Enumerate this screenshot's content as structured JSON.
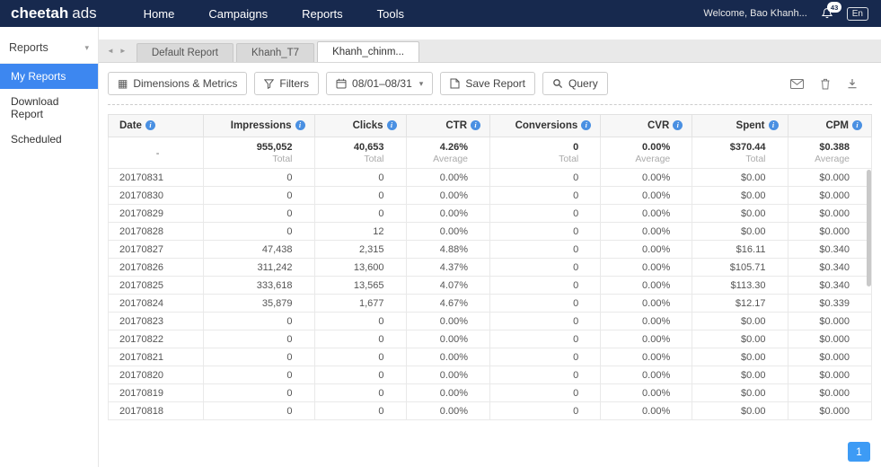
{
  "navbar": {
    "brand_bold": "cheetah",
    "brand_rest": "ads",
    "items": [
      "Home",
      "Campaigns",
      "Reports",
      "Tools"
    ],
    "welcome": "Welcome,",
    "username": "Bao Khanh...",
    "notif_count": "43",
    "language": "En"
  },
  "sidebar": {
    "group_label": "Reports",
    "items": [
      {
        "label": "My Reports",
        "active": true
      },
      {
        "label": "Download Report",
        "active": false
      },
      {
        "label": "Scheduled",
        "active": false
      }
    ]
  },
  "tabs": {
    "items": [
      {
        "label": "Default Report",
        "active": false
      },
      {
        "label": "Khanh_T7",
        "active": false
      },
      {
        "label": "Khanh_chinm...",
        "active": true
      }
    ]
  },
  "toolbar": {
    "dimensions_label": "Dimensions & Metrics",
    "filters_label": "Filters",
    "date_range": "08/01–08/31",
    "save_label": "Save Report",
    "query_label": "Query"
  },
  "icons": {
    "grid": "▦",
    "caret_down": "▾",
    "tab_left": "◄",
    "tab_right": "►",
    "sidebar_chevron": "▾"
  },
  "colors": {
    "navbar_bg": "#17294e",
    "accent_blue": "#3d87f0",
    "info_icon_blue": "#4a90e2",
    "pagination_blue": "#3d9bf5"
  },
  "table": {
    "columns": [
      "Date",
      "Impressions",
      "Clicks",
      "CTR",
      "Conversions",
      "CVR",
      "Spent",
      "CPM"
    ],
    "summary": {
      "date": "-",
      "values": [
        "955,052",
        "40,653",
        "4.26%",
        "0",
        "0.00%",
        "$370.44",
        "$0.388"
      ],
      "labels": [
        "Total",
        "Total",
        "Average",
        "Total",
        "Average",
        "Total",
        "Average"
      ]
    },
    "rows": [
      {
        "date": "20170831",
        "values": [
          "0",
          "0",
          "0.00%",
          "0",
          "0.00%",
          "$0.00",
          "$0.000"
        ]
      },
      {
        "date": "20170830",
        "values": [
          "0",
          "0",
          "0.00%",
          "0",
          "0.00%",
          "$0.00",
          "$0.000"
        ]
      },
      {
        "date": "20170829",
        "values": [
          "0",
          "0",
          "0.00%",
          "0",
          "0.00%",
          "$0.00",
          "$0.000"
        ]
      },
      {
        "date": "20170828",
        "values": [
          "0",
          "12",
          "0.00%",
          "0",
          "0.00%",
          "$0.00",
          "$0.000"
        ]
      },
      {
        "date": "20170827",
        "values": [
          "47,438",
          "2,315",
          "4.88%",
          "0",
          "0.00%",
          "$16.11",
          "$0.340"
        ]
      },
      {
        "date": "20170826",
        "values": [
          "311,242",
          "13,600",
          "4.37%",
          "0",
          "0.00%",
          "$105.71",
          "$0.340"
        ]
      },
      {
        "date": "20170825",
        "values": [
          "333,618",
          "13,565",
          "4.07%",
          "0",
          "0.00%",
          "$113.30",
          "$0.340"
        ]
      },
      {
        "date": "20170824",
        "values": [
          "35,879",
          "1,677",
          "4.67%",
          "0",
          "0.00%",
          "$12.17",
          "$0.339"
        ]
      },
      {
        "date": "20170823",
        "values": [
          "0",
          "0",
          "0.00%",
          "0",
          "0.00%",
          "$0.00",
          "$0.000"
        ]
      },
      {
        "date": "20170822",
        "values": [
          "0",
          "0",
          "0.00%",
          "0",
          "0.00%",
          "$0.00",
          "$0.000"
        ]
      },
      {
        "date": "20170821",
        "values": [
          "0",
          "0",
          "0.00%",
          "0",
          "0.00%",
          "$0.00",
          "$0.000"
        ]
      },
      {
        "date": "20170820",
        "values": [
          "0",
          "0",
          "0.00%",
          "0",
          "0.00%",
          "$0.00",
          "$0.000"
        ]
      },
      {
        "date": "20170819",
        "values": [
          "0",
          "0",
          "0.00%",
          "0",
          "0.00%",
          "$0.00",
          "$0.000"
        ]
      },
      {
        "date": "20170818",
        "values": [
          "0",
          "0",
          "0.00%",
          "0",
          "0.00%",
          "$0.00",
          "$0.000"
        ]
      }
    ]
  },
  "pagination": {
    "current_page": "1"
  }
}
